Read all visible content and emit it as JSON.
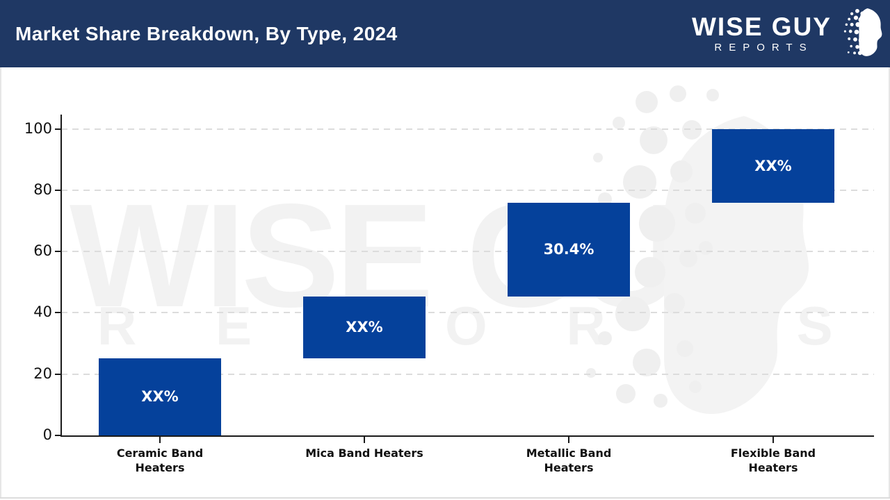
{
  "header": {
    "title": "Market Share Breakdown, By Type, 2024",
    "logo_line1": "WISE GUY",
    "logo_line2": "REPORTS",
    "bg_color": "#1f3864"
  },
  "watermark": {
    "line1": "WISE GUY",
    "line2": "R E P O R T S"
  },
  "chart_data": {
    "type": "bar",
    "subtype": "floating-waterfall",
    "title": "Market Share Breakdown, By Type, 2024",
    "categories": [
      "Ceramic Band\nHeaters",
      "Mica Band Heaters",
      "Metallic Band\nHeaters",
      "Flexible Band\nHeaters"
    ],
    "series": [
      {
        "name": "Market share by type (%)",
        "segments": [
          {
            "category": "Ceramic Band Heaters",
            "start": 0,
            "end": 25.2,
            "label": "XX%"
          },
          {
            "category": "Mica Band Heaters",
            "start": 25.2,
            "end": 45.4,
            "label": "XX%"
          },
          {
            "category": "Metallic Band Heaters",
            "start": 45.4,
            "end": 75.8,
            "label": "30.4%"
          },
          {
            "category": "Flexible Band Heaters",
            "start": 75.8,
            "end": 100,
            "label": "XX%"
          }
        ]
      }
    ],
    "xlabel": "",
    "ylabel": "",
    "ylim": [
      0,
      100
    ],
    "yticks": [
      0,
      20,
      40,
      60,
      80,
      100
    ],
    "grid": "horizontal-dashed",
    "legend": "none",
    "bar_color": "#05419b",
    "bar_label_color": "#ffffff",
    "axis_color": "#1a1a1a",
    "gridline_color": "#dcdcdc"
  }
}
